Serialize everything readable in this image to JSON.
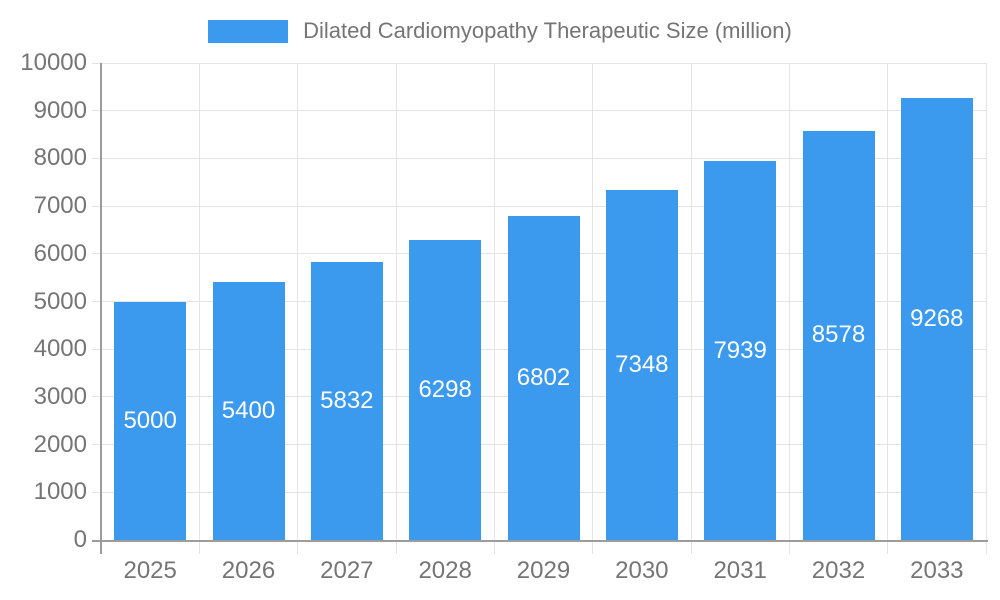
{
  "chart_data": {
    "type": "bar",
    "title": "Dilated Cardiomyopathy Therapeutic Size (million)",
    "categories": [
      "2025",
      "2026",
      "2027",
      "2028",
      "2029",
      "2030",
      "2031",
      "2032",
      "2033"
    ],
    "values": [
      5000,
      5400,
      5832,
      6298,
      6802,
      7348,
      7939,
      8578,
      9268
    ],
    "xlabel": "",
    "ylabel": "",
    "ylim": [
      0,
      10000
    ],
    "ytick_step": 1000,
    "grid": true,
    "legend_position": "top-center",
    "colors": {
      "bar": "#3b99ee",
      "bar_value_text": "#ffffff",
      "axis_text": "#757575",
      "axis_line": "#9c9c9c",
      "gridline": "#e4e4e4",
      "background": "#ffffff"
    }
  }
}
